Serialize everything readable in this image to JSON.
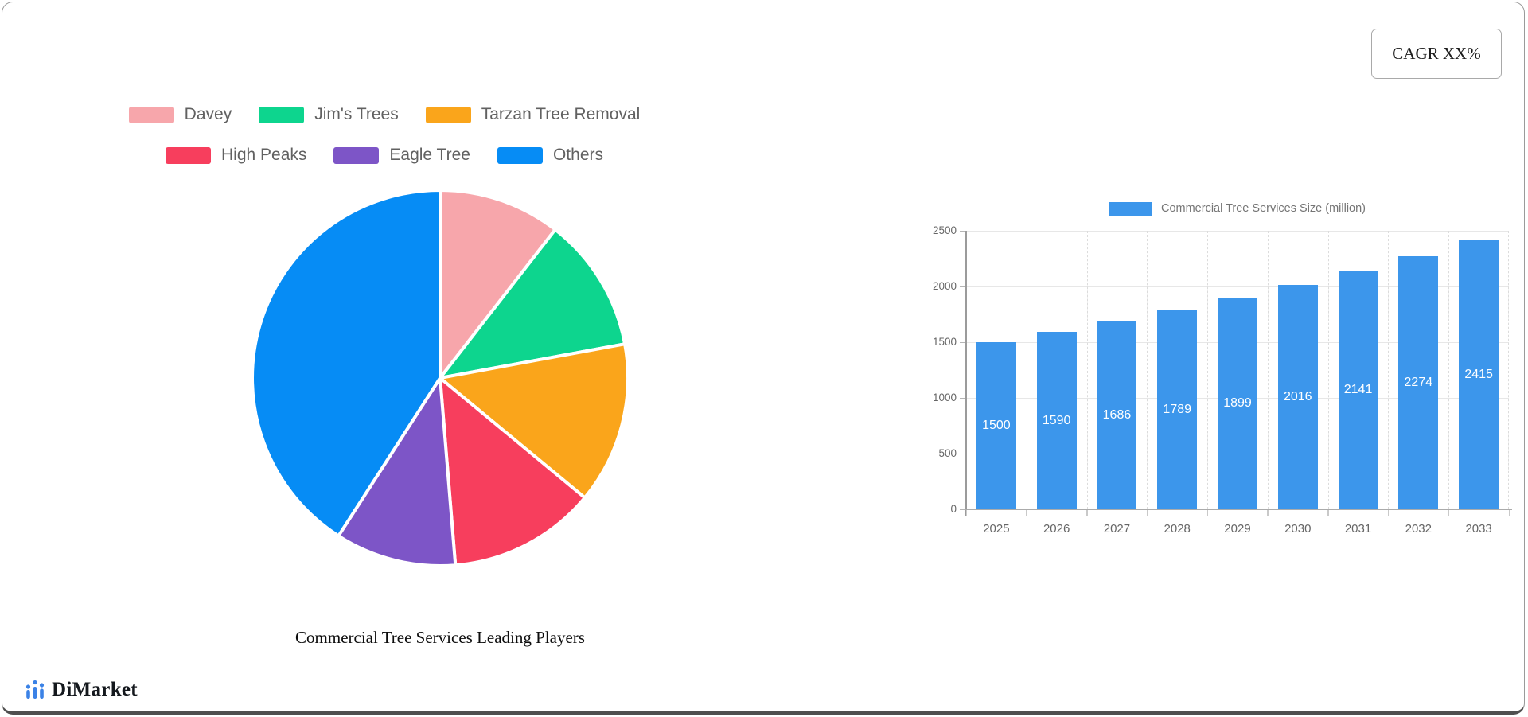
{
  "card": {
    "cagr_label": "CAGR XX%"
  },
  "branding": {
    "logo_text": "DiMarket",
    "logo_icon": "bar-chart-icon",
    "logo_icon_color": "#3b82e6"
  },
  "chart_data": [
    {
      "type": "pie",
      "title": "Commercial Tree Services Leading Players",
      "legend_position": "top",
      "labels": [
        "Davey",
        "Jim's Trees",
        "Tarzan Tree Removal",
        "High Peaks",
        "Eagle Tree",
        "Others"
      ],
      "values_percent": [
        10.5,
        11.6,
        13.9,
        12.7,
        10.4,
        40.9
      ],
      "colors": [
        "#f7a6ab",
        "#0dd58e",
        "#faa51b",
        "#f73e5d",
        "#7d55c7",
        "#068cf5"
      ],
      "start_angle_deg": -90,
      "direction": "clockwise",
      "slice_separator_color": "#ffffff"
    },
    {
      "type": "bar",
      "legend_label": "Commercial Tree Services Size (million)",
      "legend_position": "top",
      "categories": [
        "2025",
        "2026",
        "2027",
        "2028",
        "2029",
        "2030",
        "2031",
        "2032",
        "2033"
      ],
      "values": [
        1500,
        1590,
        1686,
        1789,
        1899,
        2016,
        2141,
        2274,
        2415
      ],
      "bar_color": "#3c96eb",
      "value_label_color": "#ffffff",
      "ylim": [
        0,
        2500
      ],
      "yticks": [
        0,
        500,
        1000,
        1500,
        2000,
        2500
      ],
      "grid": true
    }
  ]
}
